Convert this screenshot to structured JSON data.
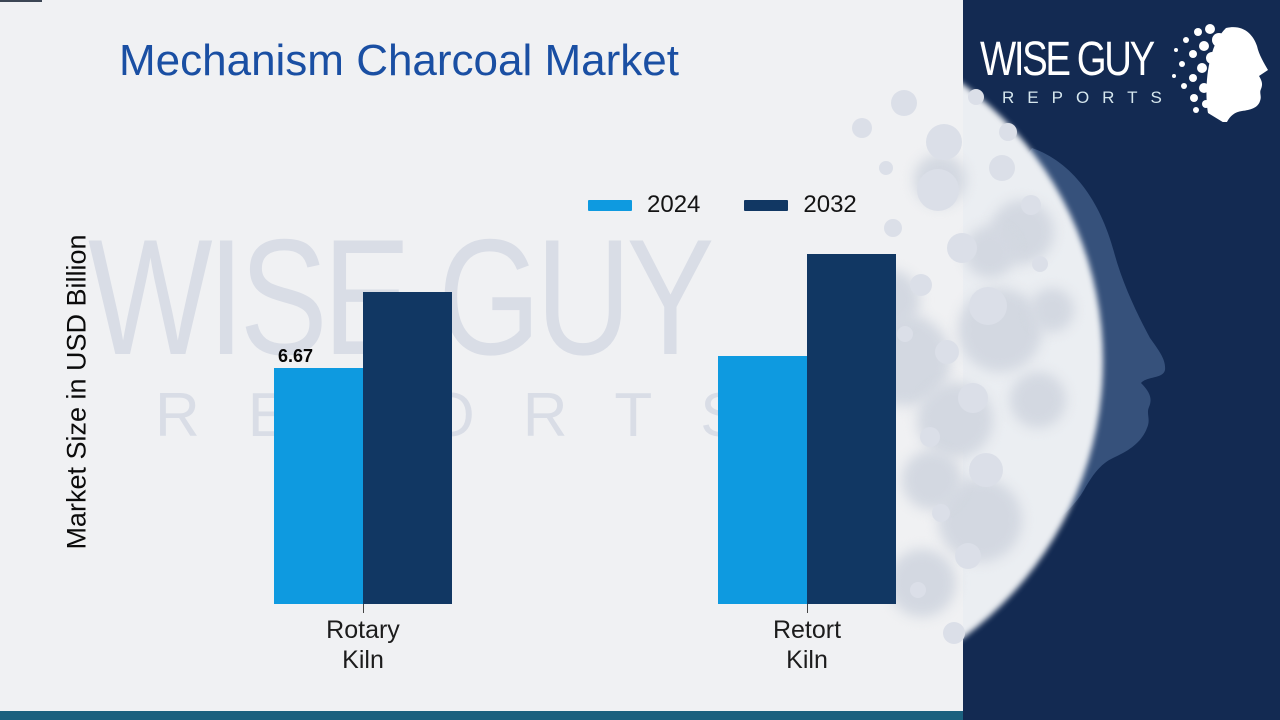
{
  "page": {
    "title": "Mechanism Charcoal Market",
    "title_color": "#1a4fa3",
    "background_color": "#f0f1f3",
    "bottom_bar_color": "#1b607e"
  },
  "brand_logo": {
    "line1": "WISE GUY",
    "line2": "REPORTS",
    "panel_color": "#132a52",
    "circle_color": "#ebeef2",
    "face_silhouette_color": "#36517b"
  },
  "watermark": {
    "line1": "WISE GUY",
    "line2": "REPORTS",
    "color": "#d9dde6"
  },
  "chart_data": {
    "type": "bar",
    "title": "Mechanism Charcoal Market",
    "ylabel": "Market Size in USD Billion",
    "xlabel": "",
    "categories": [
      "Rotary Kiln",
      "Retort Kiln"
    ],
    "series": [
      {
        "name": "2024",
        "color": "#0e9ae0",
        "values": [
          6.67,
          7.0
        ]
      },
      {
        "name": "2032",
        "color": "#113763",
        "values": [
          8.8,
          9.9
        ]
      }
    ],
    "value_labels": [
      [
        "6.67",
        ""
      ],
      [
        "",
        ""
      ]
    ],
    "ylim": [
      0,
      10.5
    ],
    "grid": false,
    "legend_position": "top-center"
  }
}
